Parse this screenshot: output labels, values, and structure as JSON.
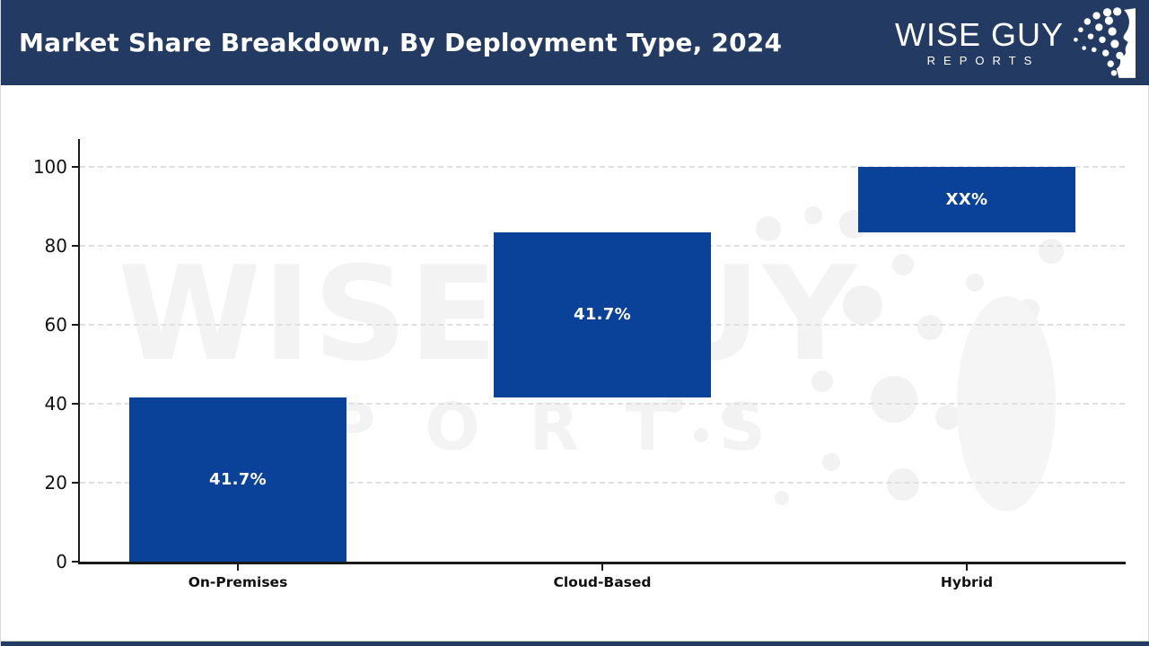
{
  "header": {
    "title": "Market Share Breakdown, By Deployment Type, 2024",
    "bg_color": "#233a63",
    "text_color": "#ffffff",
    "logo": {
      "main": "WISE GUY",
      "sub": "REPORTS",
      "icon": "dotted-face-profile-icon",
      "color": "#ffffff"
    }
  },
  "watermark": {
    "line1": "WISE GUY",
    "line2": "REPORTS",
    "icon": "dotted-face-profile-watermark",
    "color": "#f3f3f3"
  },
  "chart_data": {
    "type": "bar",
    "subtype": "stacked-waterfall",
    "title": "Market Share Breakdown, By Deployment Type, 2024",
    "categories": [
      "On-Premises",
      "Cloud-Based",
      "Hybrid"
    ],
    "series": [
      {
        "name": "Market Share %",
        "segments": [
          {
            "category": "On-Premises",
            "start": 0,
            "end": 41.7,
            "label": "41.7%"
          },
          {
            "category": "Cloud-Based",
            "start": 41.7,
            "end": 83.4,
            "label": "41.7%"
          },
          {
            "category": "Hybrid",
            "start": 83.4,
            "end": 100,
            "label": "XX%"
          }
        ]
      }
    ],
    "xlabel": "",
    "ylabel": "",
    "ylim": [
      0,
      100
    ],
    "yticks": [
      0,
      20,
      40,
      60,
      80,
      100
    ],
    "grid": "horizontal-dashed",
    "legend": "none",
    "bar_color": "#0a4199",
    "bar_label_color": "#ffffff",
    "axis_color": "#1a1a1a",
    "gridline_color": "#e0e0e0",
    "tick_label_color": "#111111"
  },
  "footer": {
    "strip_color": "#233a63"
  }
}
